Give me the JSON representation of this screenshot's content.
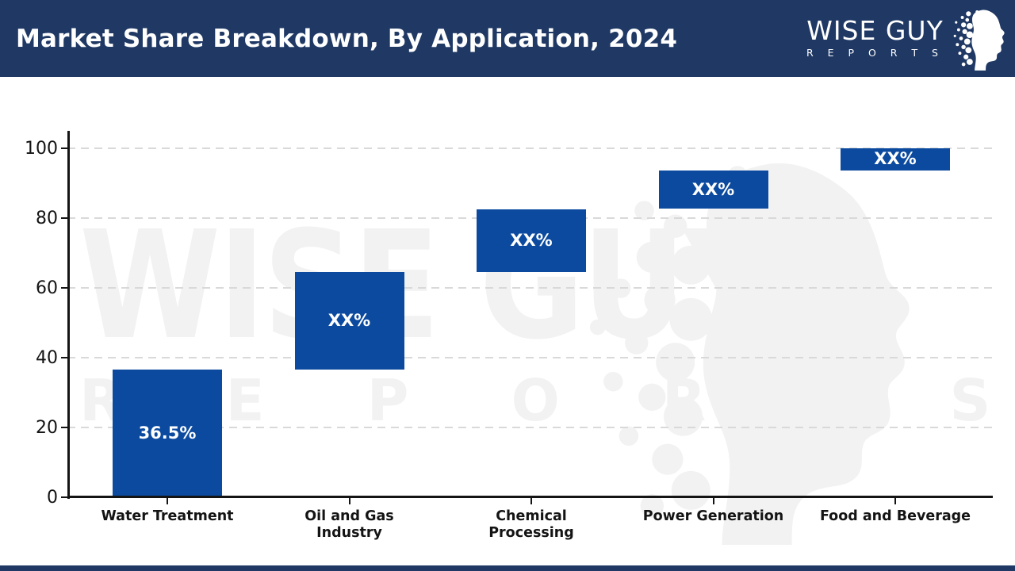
{
  "header": {
    "title": "Market Share Breakdown, By Application, 2024",
    "logo": {
      "line1": "WISE GUY",
      "line2": "R E P O R T S"
    }
  },
  "watermark": {
    "line1": "WISE GUY",
    "line2": "R E P O R T S"
  },
  "chart_data": {
    "type": "bar",
    "variant": "waterfall",
    "title": "Market Share Breakdown, By Application, 2024",
    "categories": [
      "Water Treatment",
      "Oil and Gas\nIndustry",
      "Chemical\nProcessing",
      "Power Generation",
      "Food and Beverage"
    ],
    "segments": [
      {
        "category": "Water Treatment",
        "start": 0,
        "end": 36.5,
        "label": "36.5%"
      },
      {
        "category": "Oil and Gas Industry",
        "start": 36.5,
        "end": 64.5,
        "label": "XX%"
      },
      {
        "category": "Chemical Processing",
        "start": 64.5,
        "end": 82.5,
        "label": "XX%"
      },
      {
        "category": "Power Generation",
        "start": 82.5,
        "end": 93.5,
        "label": "XX%"
      },
      {
        "category": "Food and Beverage",
        "start": 93.5,
        "end": 100,
        "label": "XX%"
      }
    ],
    "yticks": [
      0,
      20,
      40,
      60,
      80,
      100
    ],
    "ylim": [
      0,
      105
    ],
    "xlabel": "",
    "ylabel": "",
    "grid": "horizontal-dashed",
    "legend": "none",
    "bar_color": "#0b4a9f",
    "bar_label_color": "#ffffff"
  },
  "colors": {
    "header_bg": "#1f3864",
    "footer_bg": "#1f3864",
    "bar": "#0b4a9f",
    "axis": "#141414",
    "grid": "#d9d9d9",
    "watermark": "#f2f2f2",
    "background": "#ffffff"
  }
}
